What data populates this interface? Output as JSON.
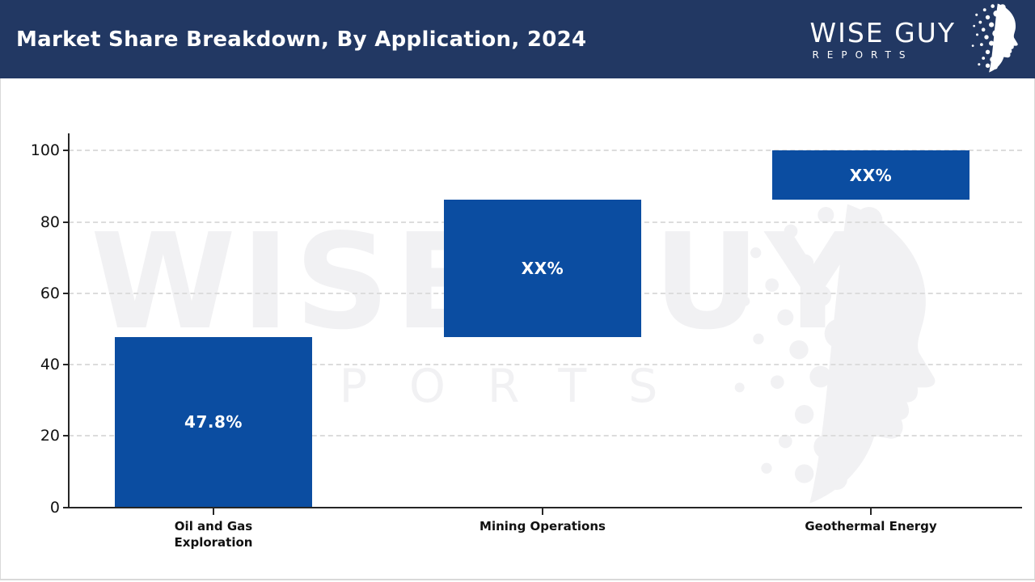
{
  "header": {
    "title": "Market Share Breakdown, By Application, 2024",
    "bg_color": "#223863"
  },
  "brand": {
    "line1": "WISE GUY",
    "line2": "REPORTS"
  },
  "chart_data": {
    "type": "bar",
    "subtype": "stacked-waterfall",
    "title": "Market Share Breakdown, By Application, 2024",
    "categories": [
      "Oil and Gas\nExploration",
      "Mining Operations",
      "Geothermal Energy"
    ],
    "segments": [
      {
        "label": "47.8%",
        "start": 0,
        "end": 47.8
      },
      {
        "label": "XX%",
        "start": 47.8,
        "end": 86.2
      },
      {
        "label": "XX%",
        "start": 86.2,
        "end": 100
      }
    ],
    "ylim": [
      0,
      100
    ],
    "yticks": [
      0,
      20,
      40,
      60,
      80,
      100
    ],
    "grid": "horizontal-dashed",
    "legend": "none",
    "bar_color": "#0b4da1",
    "bar_label_color": "#ffffff",
    "axis_color": "#262626",
    "gridline_color": "#dcdcdc"
  }
}
